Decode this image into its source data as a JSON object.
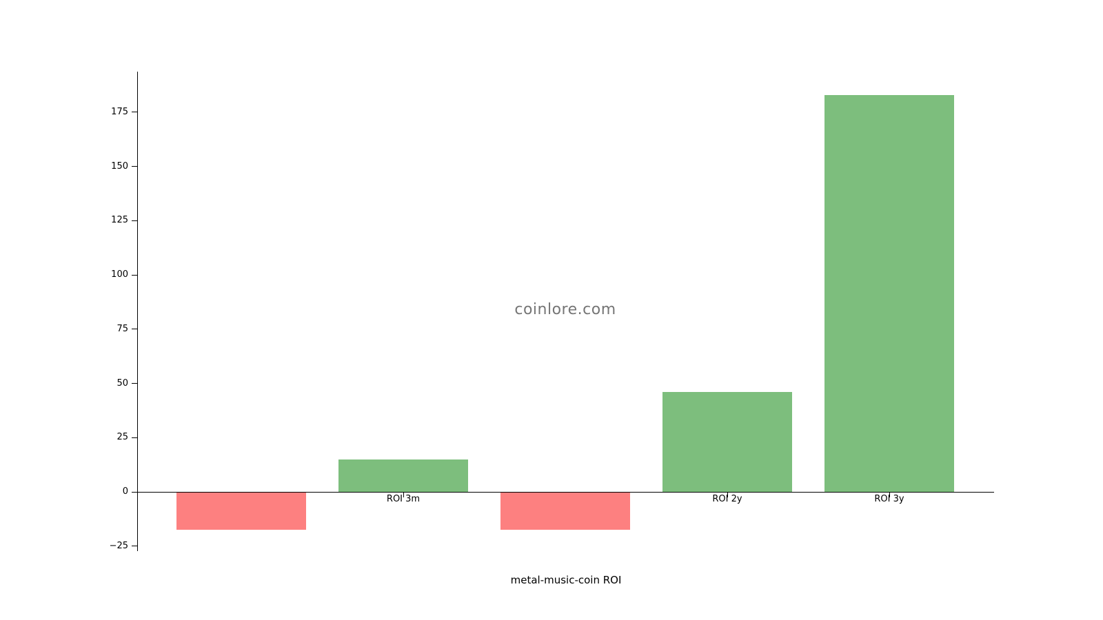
{
  "watermark": {
    "text": "coinlore.com",
    "color": "#757575"
  },
  "chart_data": {
    "type": "bar",
    "title": "",
    "xlabel": "metal-music-coin ROI",
    "ylabel": "",
    "categories": [
      "",
      "ROI 3m",
      "",
      "ROI 2y",
      "ROI 3y"
    ],
    "values": [
      -17,
      15,
      -17,
      46,
      183
    ],
    "colors": {
      "positive": "#7dbe7d",
      "negative": "#fd8080",
      "axis": "#000000"
    },
    "y_ticks": [
      -25,
      0,
      25,
      50,
      75,
      100,
      125,
      150,
      175
    ],
    "ylim": [
      -27,
      193
    ],
    "grid": false,
    "legend": false
  }
}
